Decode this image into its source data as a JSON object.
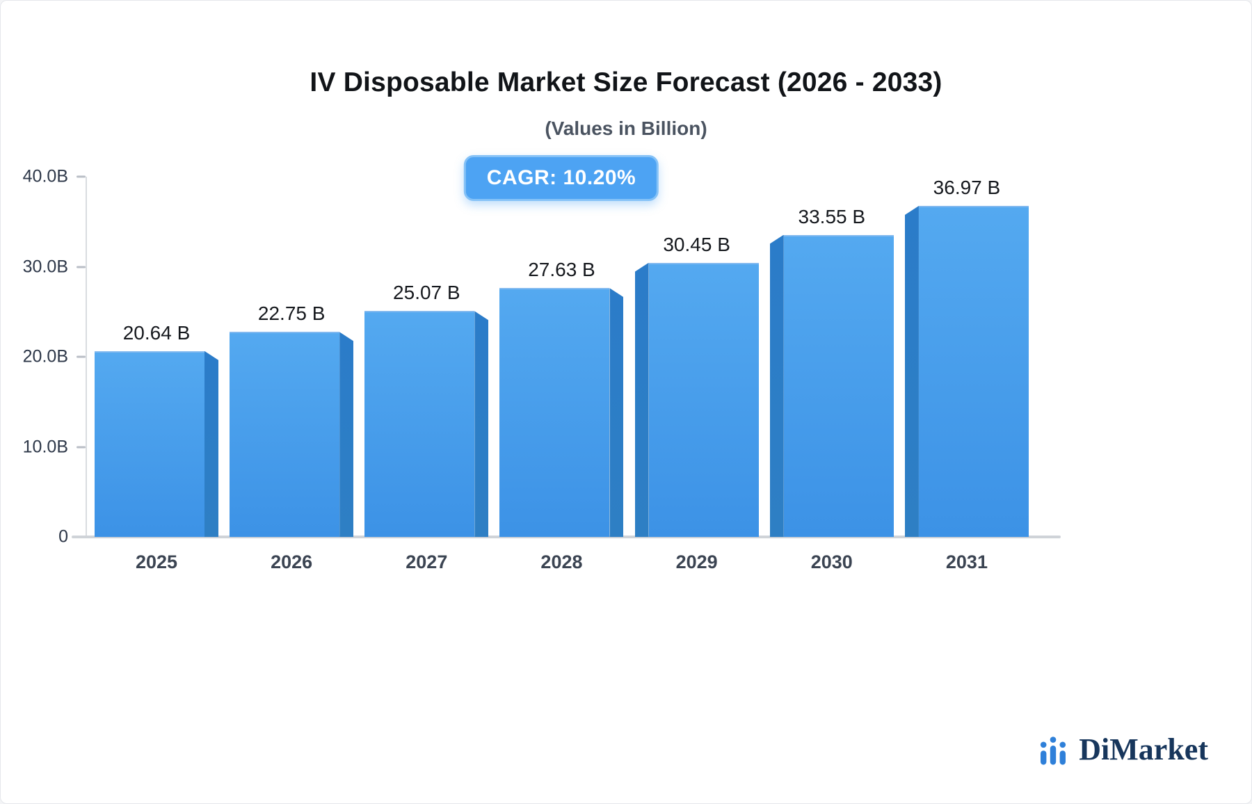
{
  "title": "IV Disposable Market Size Forecast (2026 - 2033)",
  "subtitle": "(Values in Billion)",
  "cagr_badge": "CAGR: 10.20%",
  "brand": {
    "name": "DiMarket"
  },
  "colors": {
    "bar_light": "#54a9f0",
    "bar_main": "#3c92e6",
    "bar_edge": "#2b7cc9",
    "badge": "#4da3f3",
    "brand_text": "#17365c"
  },
  "chart_data": {
    "type": "bar",
    "categories": [
      "2025",
      "2026",
      "2027",
      "2028",
      "2029",
      "2030",
      "2031"
    ],
    "values": [
      20.64,
      22.75,
      25.07,
      27.63,
      30.45,
      33.55,
      36.97
    ],
    "value_labels": [
      "20.64 B",
      "22.75 B",
      "25.07 B",
      "27.63 B",
      "30.45 B",
      "33.55 B",
      "36.97 B"
    ],
    "title": "IV Disposable Market Size Forecast (2026 - 2033)",
    "subtitle": "(Values in Billion)",
    "annotation": "CAGR: 10.20%",
    "xlabel": "",
    "ylabel": "",
    "ylim": [
      0,
      40
    ],
    "yticks_top_to_bottom": [
      "40.0B",
      "30.0B",
      "20.0B",
      "10.0B",
      "0"
    ],
    "grid": false,
    "legend": false
  }
}
